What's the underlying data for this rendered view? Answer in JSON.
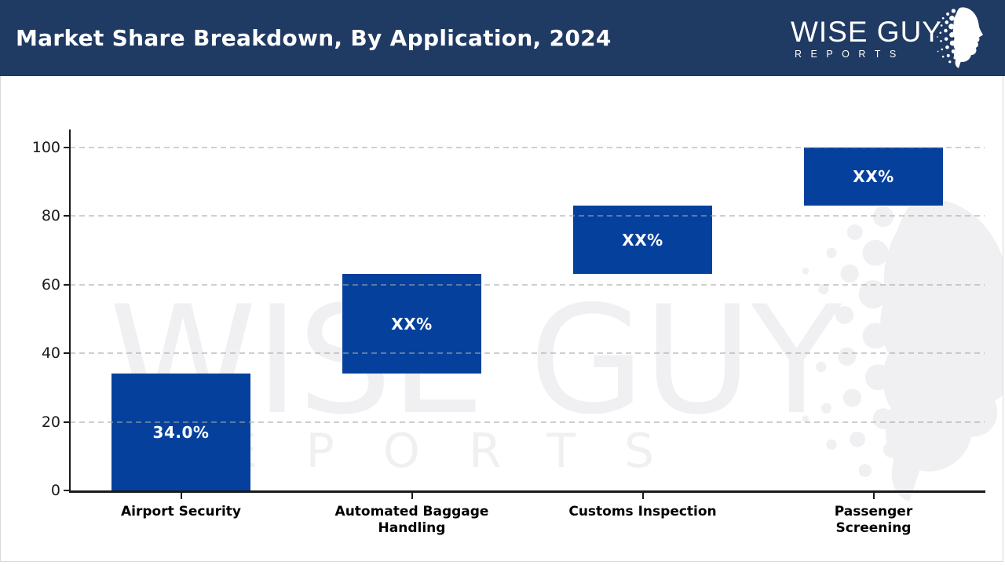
{
  "header": {
    "title": "Market Share Breakdown, By Application, 2024",
    "logo": {
      "line1": "WISE GUY",
      "line2": "REPORTS"
    }
  },
  "watermark": {
    "line1": "WISE GUY",
    "line2": "REPORTS"
  },
  "icons": {
    "logo_face": "face-profile-dots-icon"
  },
  "colors": {
    "header_bg": "#1F3A63",
    "bar": "#05419C",
    "axis": "#1A1A1A",
    "gridline": "#A8A8A8",
    "watermark": "#F0F0F2",
    "bar_label_text": "#FFFFFF"
  },
  "chart_data": {
    "type": "bar",
    "variant": "waterfall",
    "title": "Market Share Breakdown, By Application, 2024",
    "xlabel": "",
    "ylabel": "",
    "ylim": [
      0,
      100
    ],
    "yticks": [
      0,
      20,
      40,
      60,
      80,
      100
    ],
    "grid": "horizontal-dashed",
    "legend": "none",
    "bar_color": "#05419C",
    "categories": [
      "Airport Security",
      "Automated Baggage Handling",
      "Customs Inspection",
      "Passenger Screening"
    ],
    "segments": [
      {
        "category": "Airport Security",
        "label_lines": [
          "Airport Security"
        ],
        "start": 0,
        "end": 34,
        "increment": 34,
        "value_label": "34.0%"
      },
      {
        "category": "Automated Baggage Handling",
        "label_lines": [
          "Automated Baggage",
          "Handling"
        ],
        "start": 34,
        "end": 63,
        "increment": 29,
        "value_label": "XX%"
      },
      {
        "category": "Customs Inspection",
        "label_lines": [
          "Customs Inspection"
        ],
        "start": 63,
        "end": 83,
        "increment": 20,
        "value_label": "XX%"
      },
      {
        "category": "Passenger Screening",
        "label_lines": [
          "Passenger",
          "Screening"
        ],
        "start": 83,
        "end": 100,
        "increment": 17,
        "value_label": "XX%"
      }
    ]
  }
}
